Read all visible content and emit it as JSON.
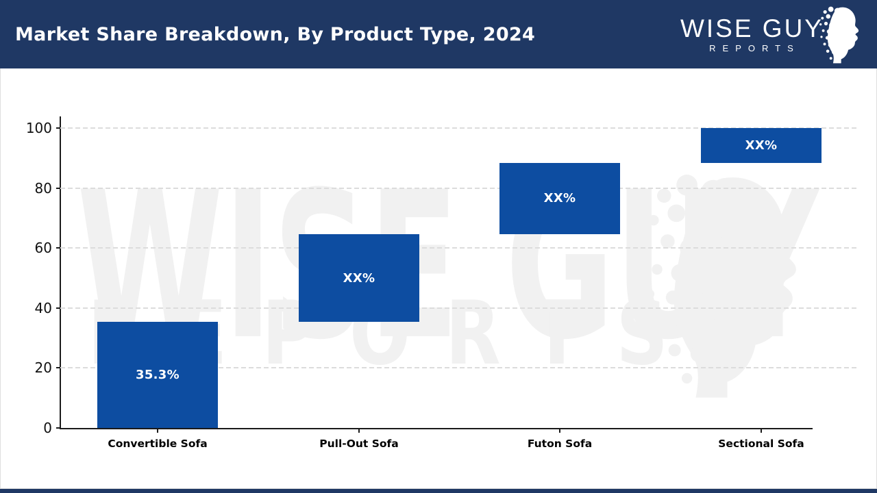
{
  "header": {
    "title": "Market Share Breakdown, By Product Type, 2024",
    "logo": {
      "line1": "WISE GUY",
      "line2": "REPORTS"
    }
  },
  "watermark": {
    "line1": "WISE GUY",
    "line2": "REPORTS"
  },
  "colors": {
    "header_bg": "#1f3864",
    "footer_bg": "#1f3864",
    "bar": "#0d4da1",
    "bar_label": "#ffffff",
    "grid": "#dcdcdc",
    "axis": "#1a1a1a",
    "tick_label": "#111111",
    "watermark": "#f1f1f1",
    "page_bg": "#ffffff"
  },
  "chart_data": {
    "type": "bar",
    "variant": "waterfall-floating-bars",
    "title": "Market Share Breakdown, By Product Type, 2024",
    "categories": [
      "Convertible Sofa",
      "Pull-Out Sofa",
      "Futon Sofa",
      "Sectional Sofa"
    ],
    "segments": [
      {
        "category": "Convertible Sofa",
        "start": 0,
        "end": 35.3,
        "label": "35.3%"
      },
      {
        "category": "Pull-Out Sofa",
        "start": 35.3,
        "end": 64.6,
        "label": "XX%"
      },
      {
        "category": "Futon Sofa",
        "start": 64.6,
        "end": 88.4,
        "label": "XX%"
      },
      {
        "category": "Sectional Sofa",
        "start": 88.4,
        "end": 100,
        "label": "XX%"
      }
    ],
    "xlabel": "",
    "ylabel": "",
    "ylim": [
      0,
      100
    ],
    "yticks": [
      0,
      20,
      40,
      60,
      80,
      100
    ],
    "grid": "horizontal dashed",
    "legend": "none",
    "bar_color": "#0d4da1",
    "watermark_text": "WISE GUY REPORTS"
  }
}
